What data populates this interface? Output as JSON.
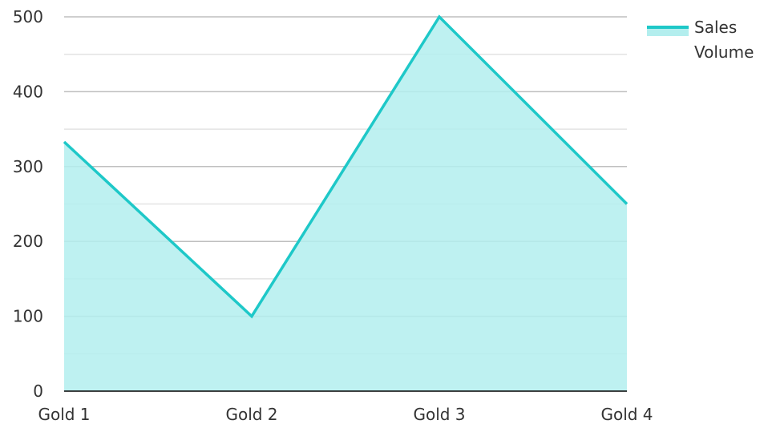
{
  "chart_data": {
    "type": "area",
    "title": "",
    "xlabel": "",
    "ylabel": "",
    "categories": [
      "Gold 1",
      "Gold 2",
      "Gold 3",
      "Gold 4"
    ],
    "series": [
      {
        "name": "Sales Volume",
        "values": [
          333,
          100,
          500,
          250
        ],
        "line_color": "#1ec8c8",
        "fill_color": "#b3eeee"
      }
    ],
    "ylim": [
      0,
      500
    ],
    "yticks": [
      "0",
      "100",
      "200",
      "300",
      "400",
      "500"
    ],
    "ytick_values": [
      0,
      100,
      200,
      300,
      400,
      500
    ],
    "grid": true,
    "minor_grid": true,
    "legend_position": "top-right",
    "legend": {
      "line1": "Sales",
      "line2": "Volume"
    },
    "colors": {
      "major_grid": "#bfbfbf",
      "minor_grid": "#e3e3e3",
      "axis": "#000000",
      "text": "#333333"
    }
  }
}
